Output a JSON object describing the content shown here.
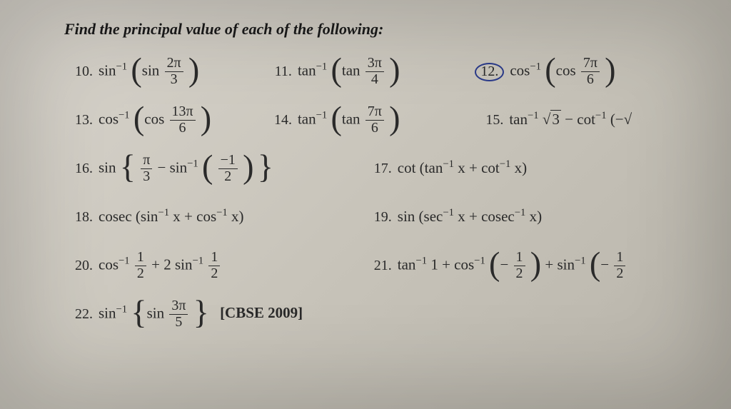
{
  "heading": "Find the principal value of each of the following:",
  "background_gradient": [
    "#d8d4cc",
    "#c8c4ba",
    "#b8b4aa"
  ],
  "text_color": "#2a2a2a",
  "circle_color": "#2a3a8a",
  "font_family": "Georgia, Times New Roman, serif",
  "heading_fontsize": 22,
  "body_fontsize": 21,
  "problems": {
    "p10": {
      "num": "10.",
      "fn": "sin",
      "inv": "−1",
      "inner_fn": "sin",
      "frac_num": "2π",
      "frac_den": "3"
    },
    "p11": {
      "num": "11.",
      "fn": "tan",
      "inv": "−1",
      "inner_fn": "tan",
      "frac_num": "3π",
      "frac_den": "4"
    },
    "p12": {
      "num": "12.",
      "fn": "cos",
      "inv": "−1",
      "inner_fn": "cos",
      "frac_num": "7π",
      "frac_den": "6",
      "circled": true
    },
    "p13": {
      "num": "13.",
      "fn": "cos",
      "inv": "−1",
      "inner_fn": "cos",
      "frac_num": "13π",
      "frac_den": "6"
    },
    "p14": {
      "num": "14.",
      "fn": "tan",
      "inv": "−1",
      "inner_fn": "tan",
      "frac_num": "7π",
      "frac_den": "6"
    },
    "p15": {
      "num": "15.",
      "t1": "tan",
      "inv": "−1",
      "sqrt": "3",
      "minus": " − ",
      "t2": "cot",
      "tail": " (−√"
    },
    "p16": {
      "num": "16.",
      "outer": "sin",
      "frac1_num": "π",
      "frac1_den": "3",
      "minus": " − ",
      "inner": "sin",
      "inv": "−1",
      "frac2_num": "−1",
      "frac2_den": "2"
    },
    "p17": {
      "num": "17.",
      "outer": "cot",
      "a": "tan",
      "inv": "−1",
      "x": " x",
      "plus": " + ",
      "b": "cot",
      "x2": " x"
    },
    "p18": {
      "num": "18.",
      "outer": "cosec",
      "a": "sin",
      "inv": "−1",
      "x": " x",
      "plus": " + ",
      "b": "cos",
      "x2": " x"
    },
    "p19": {
      "num": "19.",
      "outer": "sin",
      "a": "sec",
      "inv": "−1",
      "x": " x",
      "plus": " + ",
      "b": "cosec",
      "x2": " x"
    },
    "p20": {
      "num": "20.",
      "a": "cos",
      "inv": "−1",
      "f1n": "1",
      "f1d": "2",
      "plus": " + 2",
      "b": "sin",
      "f2n": "1",
      "f2d": "2"
    },
    "p21": {
      "num": "21.",
      "a": "tan",
      "inv": "−1",
      "one": " 1 + ",
      "b": "cos",
      "f1n": "1",
      "f1d": "2",
      "plus": " + ",
      "c": "sin",
      "f2n": "1",
      "f2d": "2",
      "neg": "− "
    },
    "p22": {
      "num": "22.",
      "a": "sin",
      "inv": "−1",
      "inner": "sin",
      "fn": "3π",
      "fd": "5",
      "tag": "[CBSE 2009]"
    }
  }
}
